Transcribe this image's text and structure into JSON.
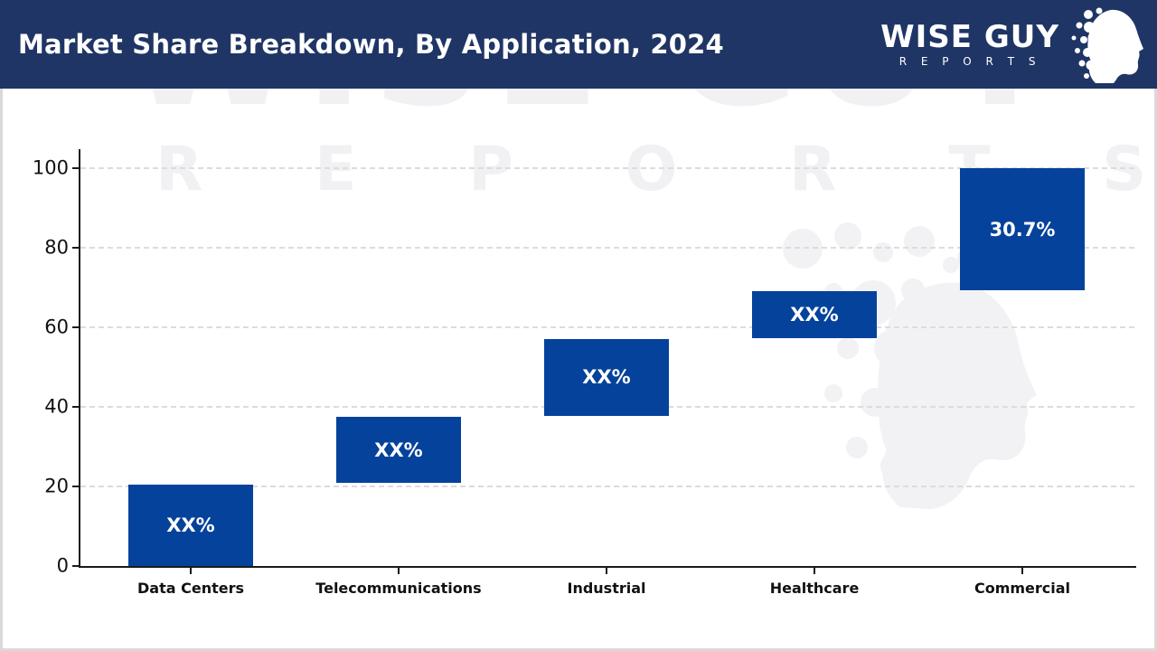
{
  "header": {
    "title": "Market Share Breakdown, By Application, 2024",
    "logo": {
      "line1": "WISE GUY",
      "line2": "R E P O R T S"
    }
  },
  "watermark": {
    "line1": "WISE GUY",
    "line2": "R E P O R T S"
  },
  "colors": {
    "header_bg": "#1f3565",
    "bar": "#05429b",
    "grid": "#dcdcdc",
    "axis": "#1a1a1a",
    "bar_label": "#ffffff",
    "watermark": "#f1f1f4",
    "edge": "#d9d9d9",
    "tick_label": "#111111"
  },
  "chart_data": {
    "type": "bar",
    "subtype": "waterfall",
    "title": "Market Share Breakdown, By Application, 2024",
    "categories": [
      "Data Centers",
      "Telecommunications",
      "Industrial",
      "Healthcare",
      "Commercial"
    ],
    "segments": [
      {
        "category": "Data Centers",
        "start": 0,
        "end": 20.5,
        "label": "XX%"
      },
      {
        "category": "Telecommunications",
        "start": 20.8,
        "end": 37.6,
        "label": "XX%"
      },
      {
        "category": "Industrial",
        "start": 37.8,
        "end": 57.1,
        "label": "XX%"
      },
      {
        "category": "Healthcare",
        "start": 57.3,
        "end": 69.2,
        "label": "XX%"
      },
      {
        "category": "Commercial",
        "start": 69.3,
        "end": 100,
        "label": "30.7%"
      }
    ],
    "yticks": [
      0,
      20,
      40,
      60,
      80,
      100
    ],
    "ylim": [
      0,
      105
    ],
    "xlabel": "",
    "ylabel": "",
    "grid": "dashed-horizontal",
    "legend": "none",
    "bar_color": "#05429b"
  }
}
